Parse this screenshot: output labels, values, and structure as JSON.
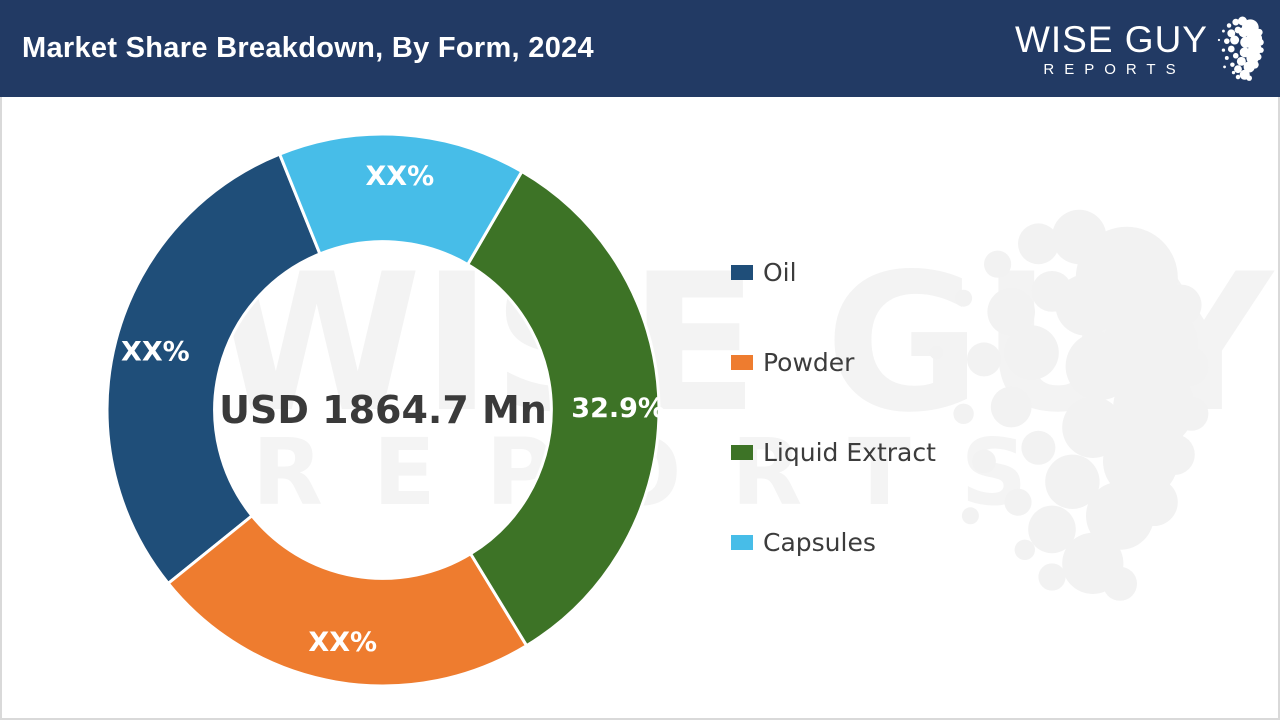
{
  "header": {
    "title": "Market Share Breakdown, By Form, 2024",
    "logo": {
      "line1": "WISE GUY",
      "line2": "REPORTS"
    }
  },
  "watermark": {
    "line1": "WISE GUY",
    "line2": "REPORTS"
  },
  "chart_data": {
    "type": "donut",
    "title": "Market Share Breakdown, By Form, 2024",
    "center_label": "USD 1864.7 Mn",
    "segments": [
      {
        "label": "Oil",
        "display_pct": "XX%",
        "value_pct": 29.7,
        "color": "#1f4e79"
      },
      {
        "label": "Powder",
        "display_pct": "XX%",
        "value_pct": 22.9,
        "color": "#ee7c2f"
      },
      {
        "label": "Liquid Extract",
        "display_pct": "32.9%",
        "value_pct": 32.9,
        "color": "#3d7326"
      },
      {
        "label": "Capsules",
        "display_pct": "XX%",
        "value_pct": 14.5,
        "color": "#47bde8"
      }
    ],
    "start_angle_deg": 112,
    "direction": "counterclockwise",
    "inner_radius_ratio": 0.61,
    "label_radius_ratio": 0.852,
    "legend_position": "right"
  },
  "colors": {
    "header_bg": "#223a64",
    "header_text": "#ffffff",
    "center_text": "#3a3a3a",
    "legend_text": "#3c3c3c",
    "slice_label_text": "#ffffff",
    "slice_separator": "#ffffff",
    "watermark": "#f3f3f3",
    "page_border": "#d9d9d9"
  }
}
